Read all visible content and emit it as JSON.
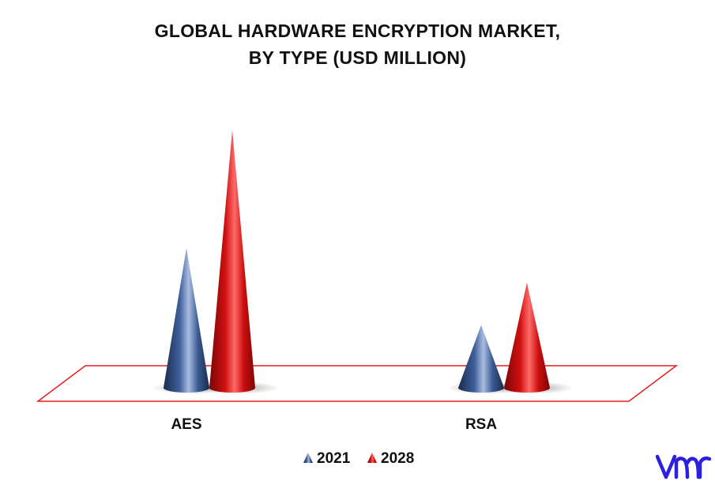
{
  "title_line1": "GLOBAL HARDWARE ENCRYPTION MARKET,",
  "title_line2": "BY TYPE (USD MILLION)",
  "chart_data": {
    "type": "bar",
    "subtype": "3d-cone",
    "title": "GLOBAL HARDWARE ENCRYPTION MARKET, BY TYPE (USD MILLION)",
    "categories": [
      "AES",
      "RSA"
    ],
    "series": [
      {
        "name": "2021",
        "values": [
          178,
          80
        ],
        "color": "#2E4A7D"
      },
      {
        "name": "2028",
        "values": [
          328,
          134
        ],
        "color": "#D11414"
      }
    ],
    "ylim": [
      0,
      340
    ],
    "grid": false,
    "axis_labels_shown": false,
    "legend_position": "bottom-center",
    "floor_outline_color": "#E02020"
  },
  "logo": {
    "name": "vmr-logo",
    "color": "#2B1FE0"
  }
}
